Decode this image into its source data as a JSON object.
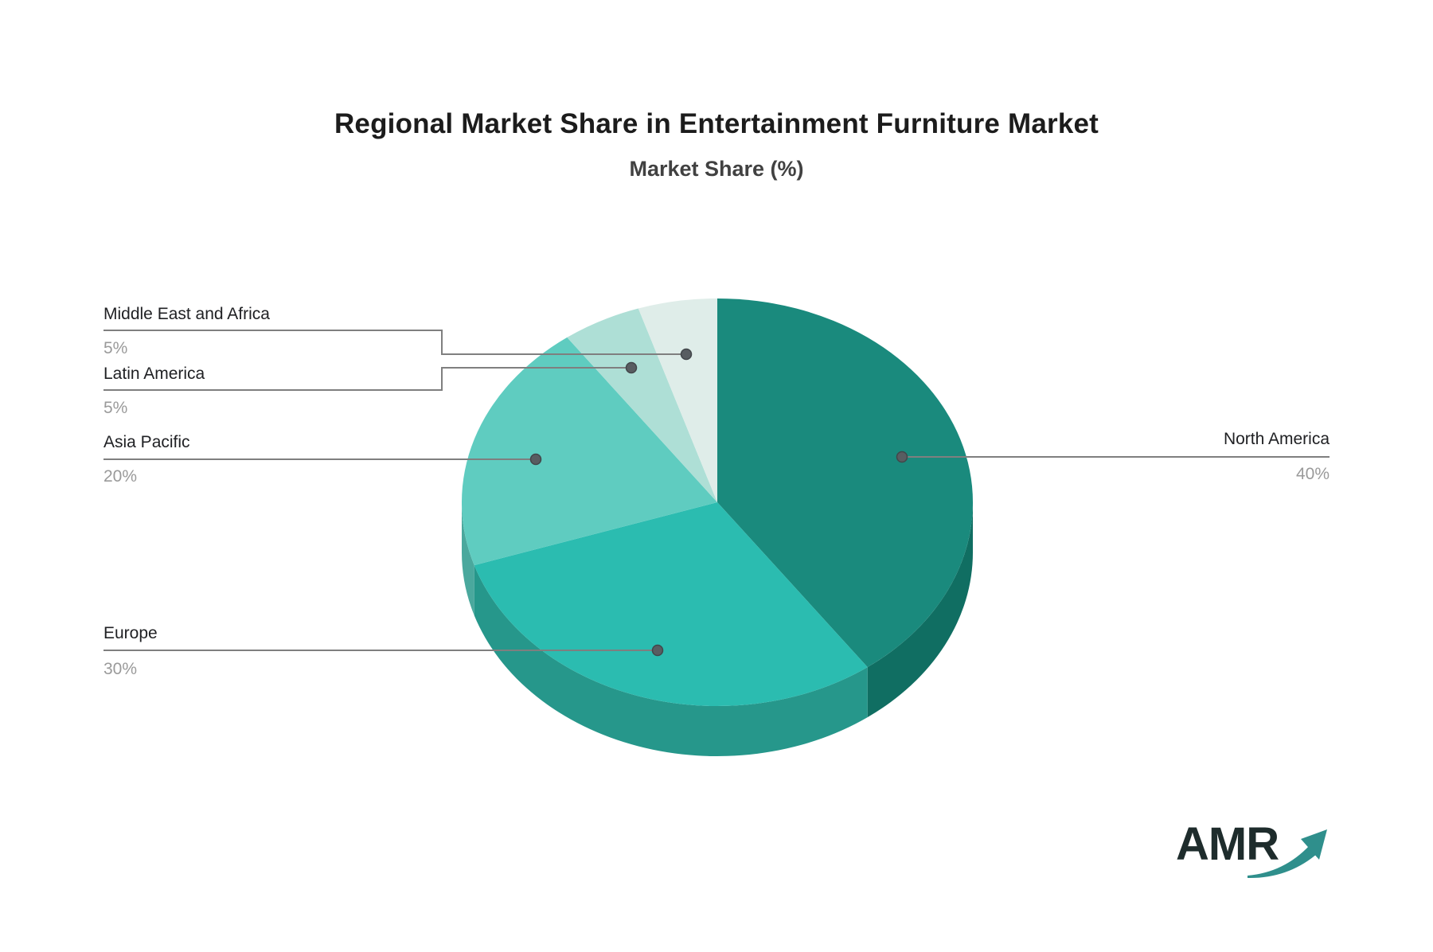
{
  "chart_data": {
    "type": "pie",
    "title": "Regional Market Share in Entertainment Furniture Market",
    "subtitle": "Market Share (%)",
    "categories": [
      "North America",
      "Europe",
      "Asia Pacific",
      "Latin America",
      "Middle East and Africa"
    ],
    "values": [
      40,
      30,
      20,
      5,
      5
    ],
    "unit": "%",
    "style": "3d-pie",
    "legend_position": "callouts",
    "slice_colors": [
      "#1a8a7d",
      "#2bbcb0",
      "#5fccc0",
      "#aedfd6",
      "#dfede9"
    ],
    "slice_side_colors": [
      "#106e62",
      "#26978b",
      "#4aa89d",
      "#8fc9c0",
      "#b9d8d2"
    ],
    "connector_color": "#7f7f7f",
    "dot_color": "#585d61",
    "callouts": [
      {
        "name": "North America",
        "pct": "40%"
      },
      {
        "name": "Europe",
        "pct": "30%"
      },
      {
        "name": "Asia Pacific",
        "pct": "20%"
      },
      {
        "name": "Latin America",
        "pct": "5%"
      },
      {
        "name": "Middle East and Africa",
        "pct": "5%"
      }
    ]
  },
  "logo": {
    "text": "AMR",
    "arrow_color": "#2f8f8c"
  }
}
